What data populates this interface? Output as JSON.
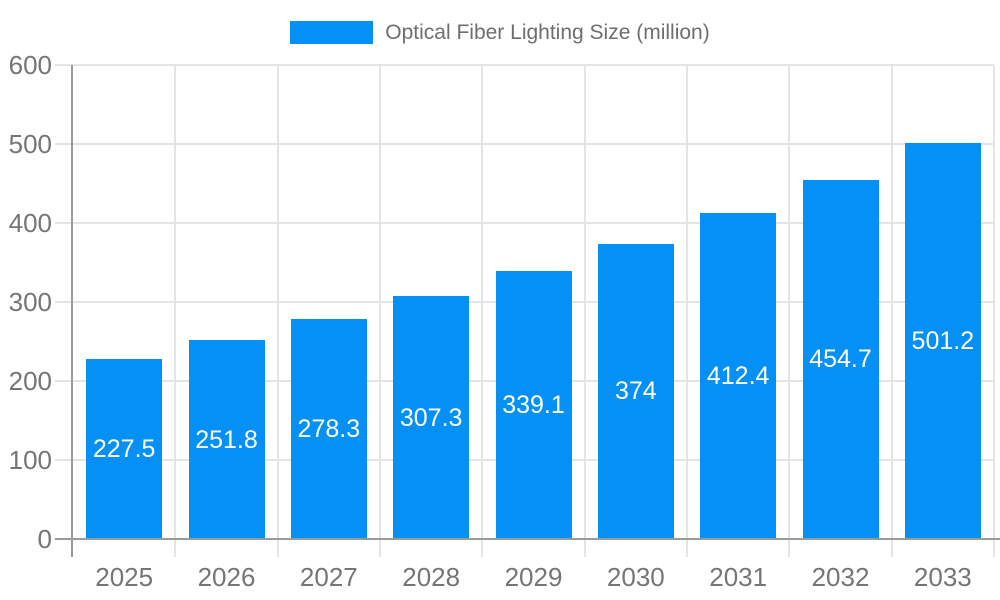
{
  "chart_data": {
    "type": "bar",
    "legend_label": "Optical Fiber Lighting Size (million)",
    "categories": [
      "2025",
      "2026",
      "2027",
      "2028",
      "2029",
      "2030",
      "2031",
      "2032",
      "2033"
    ],
    "values": [
      227.5,
      251.8,
      278.3,
      307.3,
      339.1,
      374,
      412.4,
      454.7,
      501.2
    ],
    "value_labels": [
      "227.5",
      "251.8",
      "278.3",
      "307.3",
      "339.1",
      "374",
      "412.4",
      "454.7",
      "501.2"
    ],
    "ylim": [
      0,
      600
    ],
    "yticks": [
      0,
      100,
      200,
      300,
      400,
      500,
      600
    ],
    "grid": true,
    "legend_position": "top-center",
    "value_label_position": "inside-center",
    "colors": {
      "bar": "#0590F5",
      "value_label": "#ffffff",
      "axis_label": "#757575",
      "legend_label": "#6e6e6e",
      "gridline": "#e4e4e4",
      "axis_line": "#9a9a9a",
      "background": "#ffffff"
    }
  }
}
